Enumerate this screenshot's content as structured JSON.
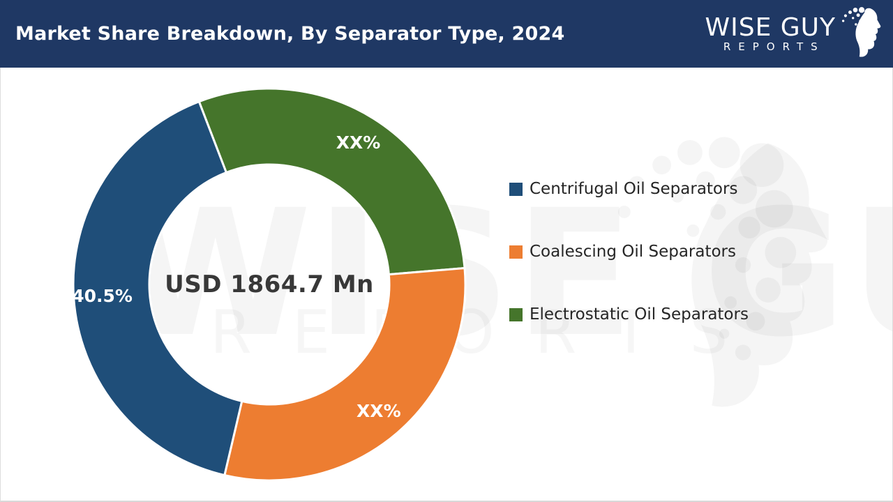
{
  "header": {
    "title": "Market Share Breakdown, By Separator Type, 2024",
    "bg_color": "#1f3864",
    "logo": {
      "name": "Wise Guy Reports",
      "line1": "WISE GUY",
      "line2": "REPORTS"
    }
  },
  "chart_data": {
    "type": "pie",
    "subtype": "donut",
    "title": "Market Share Breakdown, By Separator Type, 2024",
    "center_label": "USD 1864.7 Mn",
    "start_angle_deg": 111,
    "direction": "clockwise",
    "legend_position": "right",
    "segments": [
      {
        "name": "Electrostatic Oil Separators",
        "label": "XX%",
        "value_pct": 29.5,
        "color": "#45752b"
      },
      {
        "name": "Coalescing Oil Separators",
        "label": "XX%",
        "value_pct": 30.0,
        "color": "#ed7d31"
      },
      {
        "name": "Centrifugal Oil Separators",
        "label": "40.5%",
        "value_pct": 40.5,
        "color": "#1f4e79"
      }
    ]
  },
  "legend": {
    "items": [
      {
        "label": "Centrifugal Oil Separators",
        "color": "#1f4e79"
      },
      {
        "label": "Coalescing Oil Separators",
        "color": "#ed7d31"
      },
      {
        "label": "Electrostatic Oil Separators",
        "color": "#45752b"
      }
    ]
  },
  "watermark": {
    "line1": "WISE GUY",
    "line2": "REPORTS"
  }
}
